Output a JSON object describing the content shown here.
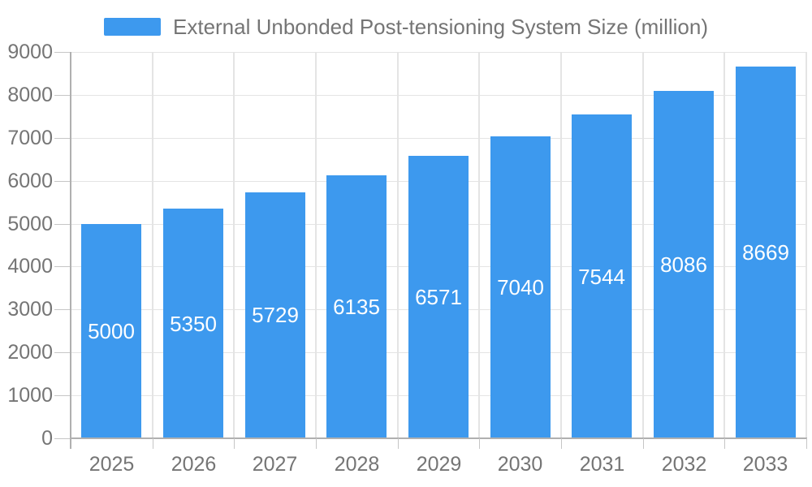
{
  "chart_data": {
    "type": "bar",
    "title": "External Unbonded Post-tensioning System Size (million)",
    "legend_position": "top",
    "categories": [
      "2025",
      "2026",
      "2027",
      "2028",
      "2029",
      "2030",
      "2031",
      "2032",
      "2033"
    ],
    "series": [
      {
        "name": "External Unbonded Post-tensioning System Size (million)",
        "values": [
          5000,
          5350,
          5729,
          6135,
          6571,
          7040,
          7544,
          8086,
          8669
        ]
      }
    ],
    "bar_value_labels": [
      "5000",
      "5350",
      "5729",
      "6135",
      "6571",
      "7040",
      "7544",
      "8086",
      "8669"
    ],
    "xlabel": "",
    "ylabel": "",
    "ylim": [
      0,
      9000
    ],
    "ytick_step": 1000,
    "ytick_labels": [
      "0",
      "1000",
      "2000",
      "3000",
      "4000",
      "5000",
      "6000",
      "7000",
      "8000",
      "9000"
    ],
    "grid": true,
    "colors": {
      "bar": "#3D99EE",
      "grid": "#E4E4E4",
      "axis_line": "#B0B0B0",
      "tick": "#C6C6C6",
      "axis_text": "#757575",
      "bar_label_text": "#FFFFFF",
      "background": "#FFFFFF"
    }
  }
}
